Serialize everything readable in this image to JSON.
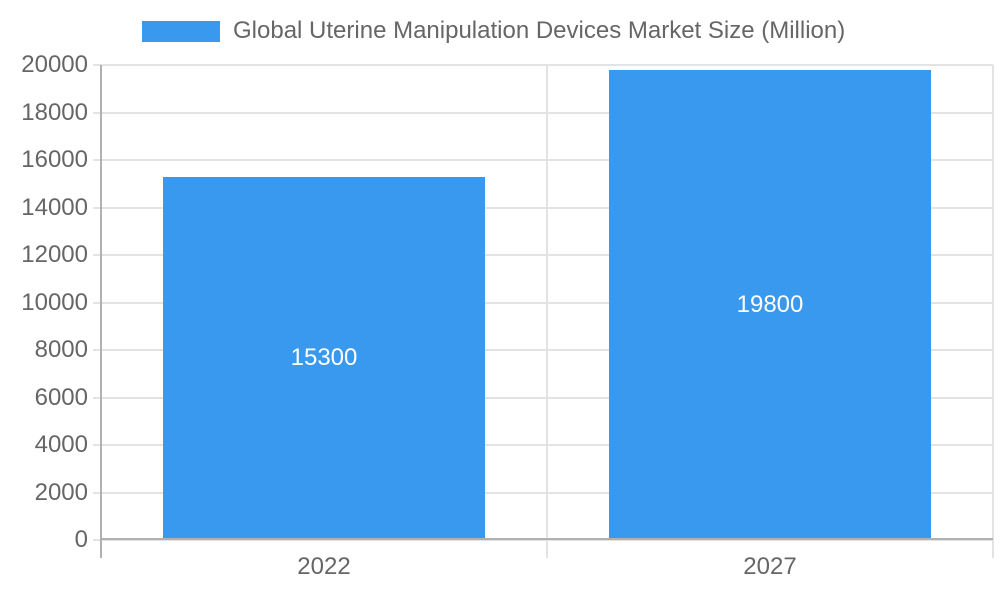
{
  "chart_data": {
    "type": "bar",
    "title": "Global Uterine Manipulation Devices Market Size (Million)",
    "categories": [
      "2022",
      "2027"
    ],
    "values": [
      15300,
      19800
    ],
    "bar_value_labels": [
      "15300",
      "19800"
    ],
    "xlabel": "",
    "ylabel": "",
    "ylim": [
      0,
      20000
    ],
    "ytick_step": 2000,
    "yticks": [
      0,
      2000,
      4000,
      6000,
      8000,
      10000,
      12000,
      14000,
      16000,
      18000,
      20000
    ],
    "grid": true,
    "legend_position": "top-left",
    "legend_entries": [
      "Global Uterine Manipulation Devices Market Size (Million)"
    ],
    "colors": {
      "bar": "#3999EE",
      "text": "#666666",
      "bar_label_text": "#FFFFFF",
      "gridline": "#E3E3E3",
      "axis_line": "#B0B0B0",
      "background": "#FFFFFF"
    }
  }
}
